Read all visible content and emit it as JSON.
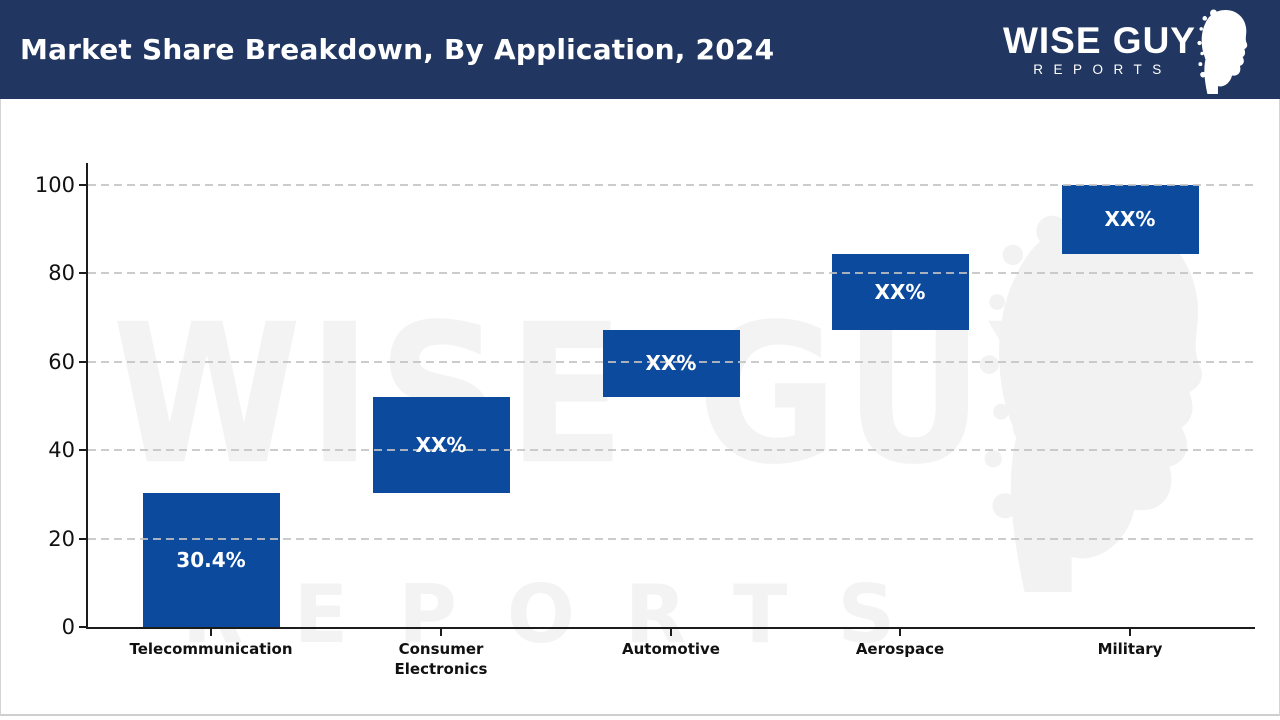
{
  "header": {
    "title": "Market Share Breakdown, By Application, 2024",
    "bg_color": "#213761",
    "logo": {
      "line1": "WISE GUY",
      "line2": "REPORTS"
    }
  },
  "watermark": {
    "line1": "WISE GUY",
    "line2": "REPORTS"
  },
  "chart_data": {
    "type": "bar",
    "subtype": "waterfall-floating-bars",
    "title": "Market Share Breakdown, By Application, 2024",
    "categories": [
      "Telecommunication",
      "Consumer Electronics",
      "Automotive",
      "Aerospace",
      "Military"
    ],
    "categories_display": [
      "Telecommunication",
      "Consumer\nElectronics",
      "Automotive",
      "Aerospace",
      "Military"
    ],
    "segments": [
      {
        "label": "30.4%",
        "start": 0,
        "end": 30.4
      },
      {
        "label": "XX%",
        "start": 30.4,
        "end": 52.1
      },
      {
        "label": "XX%",
        "start": 52.1,
        "end": 67.3
      },
      {
        "label": "XX%",
        "start": 67.3,
        "end": 84.4
      },
      {
        "label": "XX%",
        "start": 84.4,
        "end": 100
      }
    ],
    "ylim": [
      0,
      100
    ],
    "yticks": [
      0,
      20,
      40,
      60,
      80,
      100
    ],
    "grid": "horizontal dashed, drawn over bars",
    "legend": "none",
    "bar_color": "#0c4a9e",
    "bar_label_color": "#ffffff",
    "xlabel": "",
    "ylabel": ""
  }
}
